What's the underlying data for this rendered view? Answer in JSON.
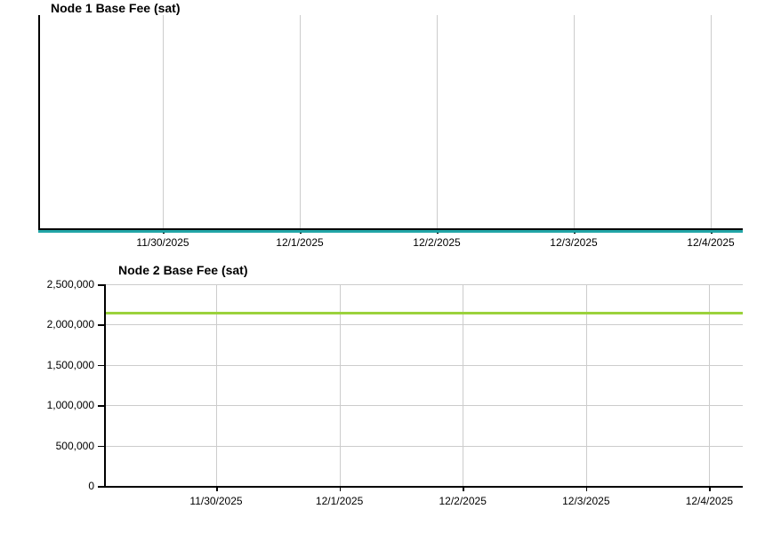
{
  "chart_data": [
    {
      "type": "line",
      "title": "Node 1 Base Fee (sat)",
      "xlabel": "",
      "ylabel": "",
      "x_ticks": [
        "11/30/2025",
        "12/1/2025",
        "12/2/2025",
        "12/3/2025",
        "12/4/2025"
      ],
      "y_ticks": [],
      "y_tick_values": [],
      "ylim": null,
      "grid": true,
      "legend": "none",
      "series": [
        {
          "name": "Node 1 Base Fee (sat)",
          "color": "#22a6a7",
          "value": 0
        }
      ]
    },
    {
      "type": "line",
      "title": "Node 2 Base Fee (sat)",
      "xlabel": "",
      "ylabel": "",
      "x_ticks": [
        "11/30/2025",
        "12/1/2025",
        "12/2/2025",
        "12/3/2025",
        "12/4/2025"
      ],
      "y_ticks": [
        "0",
        "500,000",
        "1,000,000",
        "1,500,000",
        "2,000,000",
        "2,500,000"
      ],
      "y_tick_values": [
        0,
        500000,
        1000000,
        1500000,
        2000000,
        2500000
      ],
      "ylim": [
        0,
        2500000
      ],
      "grid": true,
      "legend": "none",
      "series": [
        {
          "name": "Node 2 Base Fee (sat)",
          "color": "#9bd23c",
          "value": 2147483
        }
      ]
    }
  ],
  "colors": {
    "axis": "#000000",
    "gridline": "#cccccc",
    "node1_line": "#22a6a7",
    "node2_line": "#9bd23c",
    "background": "#ffffff"
  }
}
